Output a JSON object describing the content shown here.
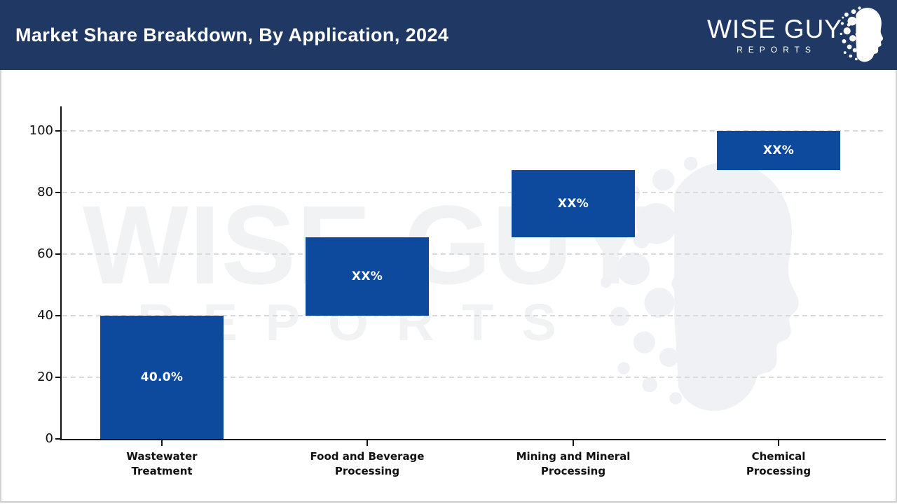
{
  "header": {
    "title": "Market Share Breakdown, By Application, 2024",
    "logo": {
      "brand": "WISE GUY",
      "brand_sub": "REPORTS"
    }
  },
  "watermark": {
    "line1": "WISE GUY",
    "line2": "REPORTS"
  },
  "chart_data": {
    "type": "bar",
    "subtype": "waterfall",
    "title": "Market Share Breakdown, By Application, 2024",
    "categories": [
      "Wastewater\nTreatment",
      "Food and Beverage\nProcessing",
      "Mining and Mineral\nProcessing",
      "Chemical\nProcessing"
    ],
    "bars": [
      {
        "category": "Wastewater Treatment",
        "label": "40.0%",
        "start": 0,
        "end": 40
      },
      {
        "category": "Food and Beverage Processing",
        "label": "XX%",
        "start": 40,
        "end": 65.5
      },
      {
        "category": "Mining and Mineral Processing",
        "label": "XX%",
        "start": 65.5,
        "end": 87.3
      },
      {
        "category": "Chemical Processing",
        "label": "XX%",
        "start": 87.3,
        "end": 100
      }
    ],
    "xlabel": "",
    "ylabel": "",
    "y_ticks": [
      0,
      20,
      40,
      60,
      80,
      100
    ],
    "ylim": [
      0,
      100
    ],
    "grid": "horizontal-dashed",
    "legend": "none",
    "bar_color": "#0d4a9e",
    "value_label_color": "#ffffff"
  },
  "colors": {
    "header_bg": "#1f3864",
    "bar": "#0d4a9e",
    "gridline": "#d9d9d9",
    "watermark": "#f1f2f4",
    "axis": "#111111"
  }
}
